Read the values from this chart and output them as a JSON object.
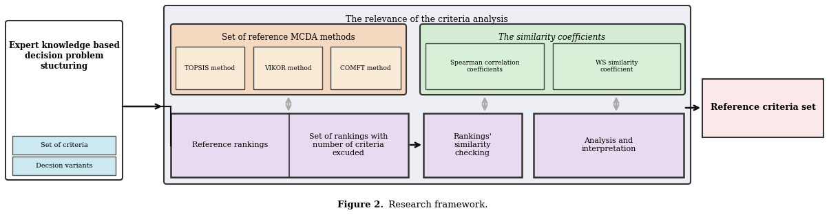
{
  "title_bold": "Figure 2.",
  "title_rest": " Research framework.",
  "bg_color": "#ffffff",
  "colors": {
    "outer_box_fill": "#eeeef5",
    "outer_box_edge": "#333333",
    "left_box_fill": "#ffffff",
    "left_box_edge": "#333333",
    "criteria_fill": "#cce8f0",
    "criteria_edge": "#555555",
    "mcda_group_fill": "#f5d8c0",
    "mcda_group_edge": "#333333",
    "mcda_method_fill": "#faebd7",
    "mcda_method_edge": "#444444",
    "sim_group_fill": "#d4ecd4",
    "sim_group_edge": "#333333",
    "sim_method_fill": "#d8f0d8",
    "sim_method_edge": "#444444",
    "bottom_combined_fill": "#e8daf0",
    "bottom_combined_edge": "#333333",
    "bottom_single_fill": "#e8daf0",
    "bottom_single_edge": "#333333",
    "right_box_fill": "#fce8e8",
    "right_box_edge": "#333333",
    "arrow_gray": "#aaaaaa",
    "arrow_black": "#111111"
  },
  "left_box": {
    "title": "Expert knowledge based\ndecision problem\nstucturing",
    "sub1": "Set of criteria",
    "sub2": "Decsion variants"
  },
  "outer_title": "The relevance of the criteria analysis",
  "mcda_group_title": "Set of reference MCDA methods",
  "mcda_methods": [
    "TOPSIS method",
    "VIKOR method",
    "COMFT method"
  ],
  "sim_group_title": "The similarity coefficients",
  "sim_methods": [
    "Spearman correlation\ncoefficients",
    "WS similarity\ncoefficient"
  ],
  "bottom_boxes": [
    "Reference rankings",
    "Set of rankings with\nnumber of criteria\nexcuded",
    "Rankings'\nsimilarity\nchecking",
    "Analysis and\ninterpretation"
  ],
  "right_box": "Reference criteria set"
}
